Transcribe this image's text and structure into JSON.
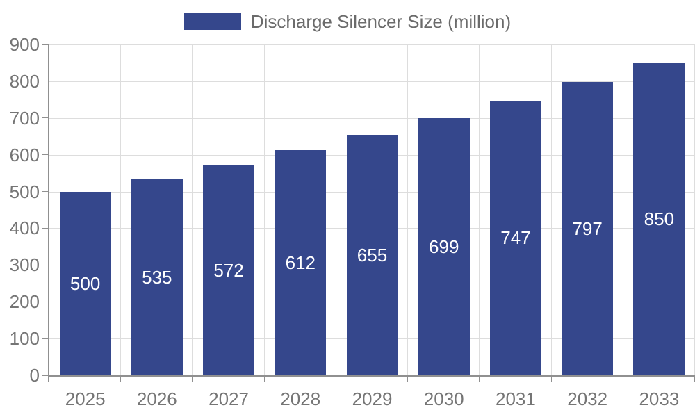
{
  "chart_data": {
    "type": "bar",
    "title": "",
    "legend_label": "Discharge Silencer Size (million)",
    "legend_position": "top",
    "categories": [
      "2025",
      "2026",
      "2027",
      "2028",
      "2029",
      "2030",
      "2031",
      "2032",
      "2033"
    ],
    "series": [
      {
        "name": "Discharge Silencer Size (million)",
        "values": [
          500,
          535,
          572,
          612,
          655,
          699,
          747,
          797,
          850
        ]
      }
    ],
    "xlabel": "",
    "ylabel": "",
    "ylim": [
      0,
      900
    ],
    "yticks": [
      0,
      100,
      200,
      300,
      400,
      500,
      600,
      700,
      800,
      900
    ],
    "grid": true,
    "value_labels_shown": true,
    "colors": {
      "bar": "#35478C",
      "grid": "#dddddd",
      "axis": "#909090",
      "tick_text": "#757575",
      "legend_text": "#6b6b6b",
      "value_label": "#ffffff",
      "background": "#ffffff"
    }
  }
}
